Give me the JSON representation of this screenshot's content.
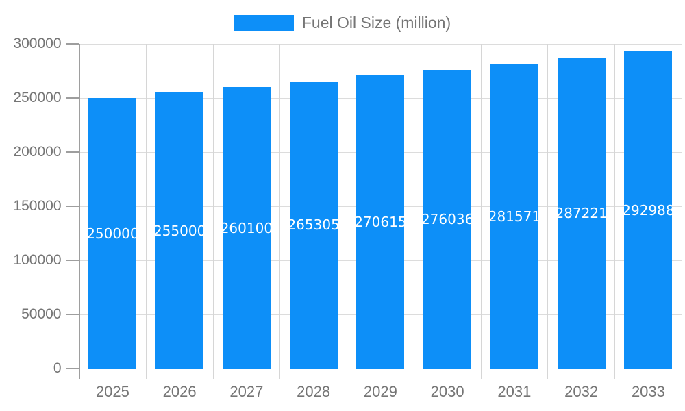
{
  "legend": {
    "label": "Fuel Oil Size (million)",
    "swatch_color": "#0d8ff8"
  },
  "colors": {
    "bar": "#0d8ff8",
    "bar_label_text": "#ffffff",
    "axis_text": "#757575",
    "gridline": "#dcdcdc",
    "axis_line": "#9e9e9e",
    "background": "#ffffff"
  },
  "chart_data": {
    "type": "bar",
    "title": "",
    "legend_entries": [
      "Fuel Oil Size (million)"
    ],
    "legend_position": "top-center",
    "categories": [
      "2025",
      "2026",
      "2027",
      "2028",
      "2029",
      "2030",
      "2031",
      "2032",
      "2033"
    ],
    "series": [
      {
        "name": "Fuel Oil Size (million)",
        "values": [
          250000,
          255000,
          260100,
          265305,
          270615,
          276036,
          281571,
          287221,
          292988
        ]
      }
    ],
    "bar_labels": [
      "250000",
      "255000",
      "260100",
      "265305",
      "270615",
      "276036",
      "281571",
      "287221",
      "292988"
    ],
    "xlabel": "",
    "ylabel": "",
    "ylim": [
      0,
      300000
    ],
    "y_ticks": [
      "0",
      "50000",
      "100000",
      "150000",
      "200000",
      "250000",
      "300000"
    ],
    "grid": "on"
  }
}
